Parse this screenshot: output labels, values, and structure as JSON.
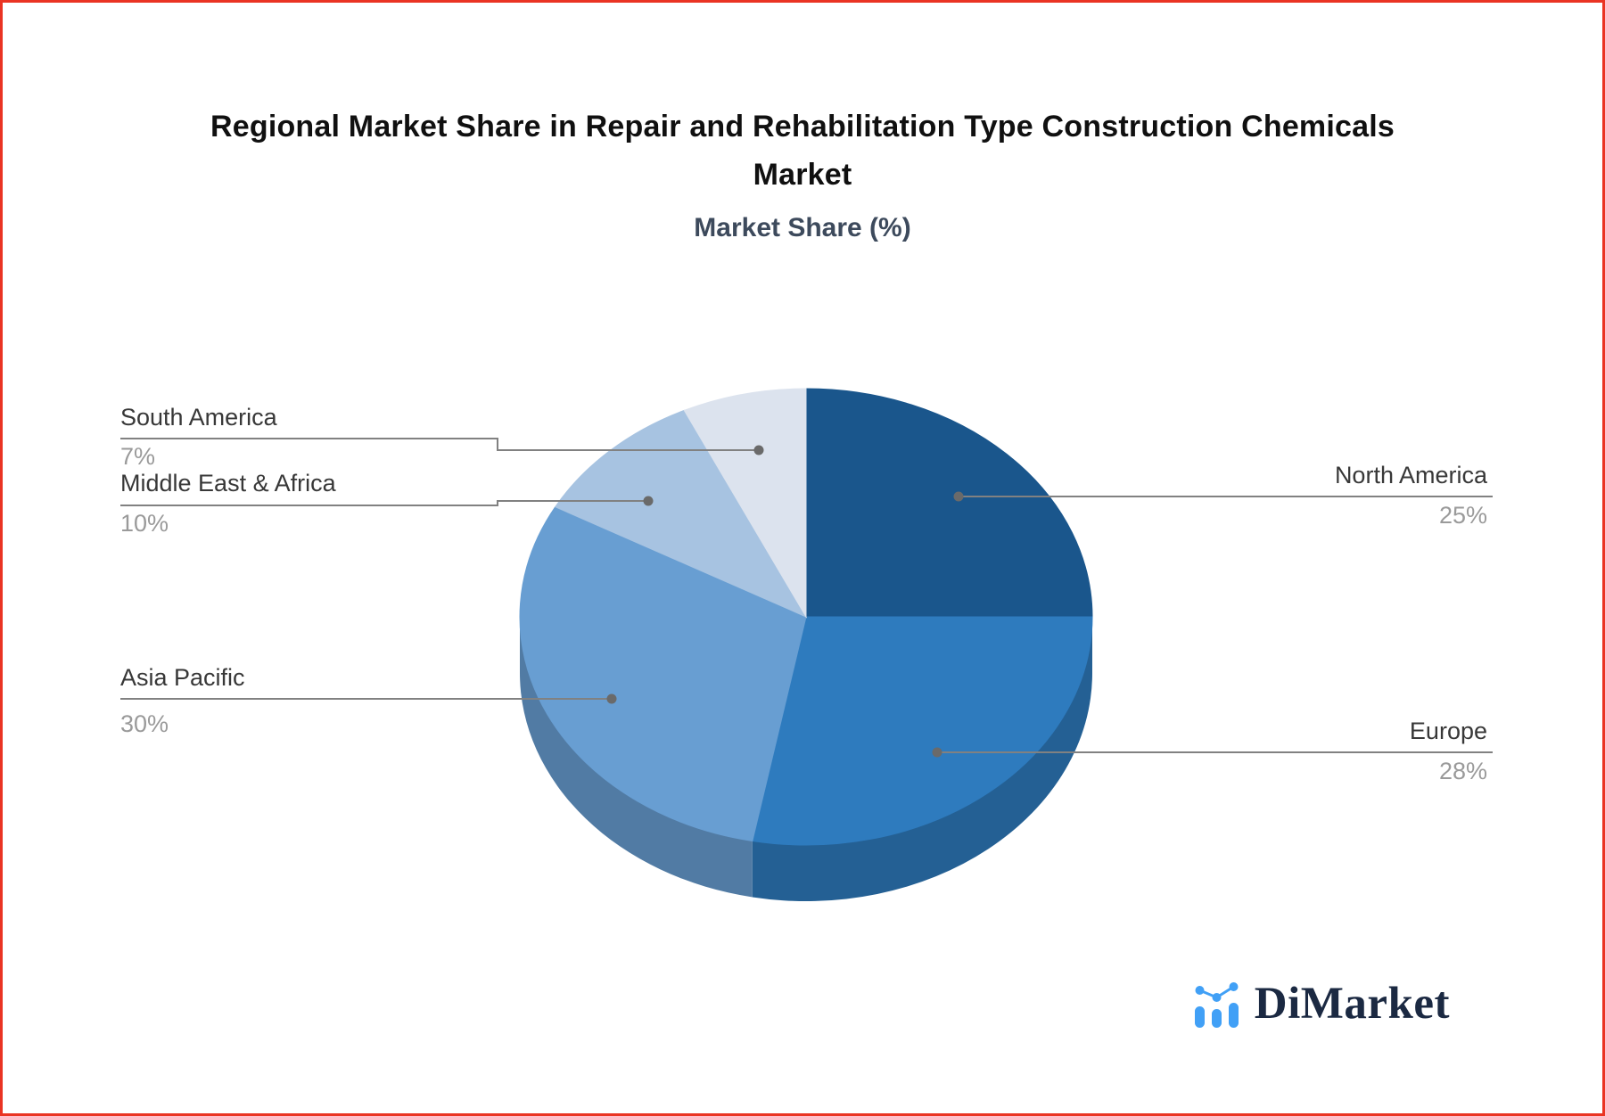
{
  "header": {
    "title_lines": [
      "Regional Market Share in Repair and Rehabilitation Type Construction Chemicals",
      "Market"
    ],
    "subtitle": "Market Share (%)"
  },
  "chart_data": {
    "type": "pie",
    "title": "Regional Market Share in Repair and Rehabilitation Type Construction Chemicals Market",
    "subtitle": "Market Share (%)",
    "unit": "%",
    "effect": "3d",
    "start_angle_deg": 0,
    "direction": "clockwise",
    "slices": [
      {
        "label": "North America",
        "value": 25,
        "color": "#1A568C"
      },
      {
        "label": "Europe",
        "value": 28,
        "color": "#2E7BBE"
      },
      {
        "label": "Asia Pacific",
        "value": 30,
        "color": "#689ED2"
      },
      {
        "label": "Middle East & Africa",
        "value": 10,
        "color": "#A7C3E1"
      },
      {
        "label": "South America",
        "value": 7,
        "color": "#DCE3EE"
      }
    ],
    "leader_line_color": "#818181",
    "leader_dot_color": "#6a6a6a",
    "legend_position": "callout-labels"
  },
  "logo": {
    "text": "DiMarket",
    "icon": "bar-chart-logo-icon",
    "icon_color": "#41A0F6",
    "text_color": "#1b2942"
  }
}
